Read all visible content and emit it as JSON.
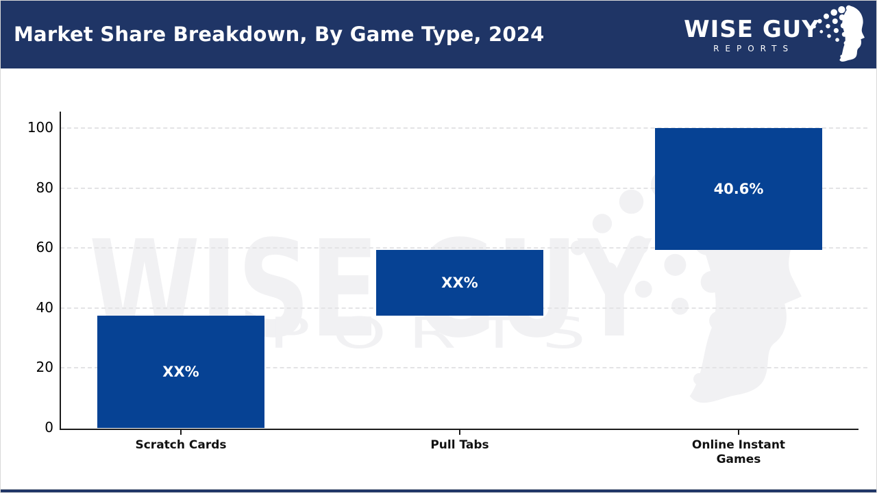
{
  "header": {
    "title": "Market Share Breakdown, By Game Type, 2024",
    "logo": {
      "line1": "WISE GUY",
      "line2": "REPORTS"
    }
  },
  "watermark": {
    "line1": "WISE GUY",
    "line2": "R E P O R T S"
  },
  "chart_data": {
    "type": "bar",
    "subtype": "waterfall-floating-bars",
    "title": "Market Share Breakdown, By Game Type, 2024",
    "categories": [
      "Scratch Cards",
      "Pull Tabs",
      "Online Instant Games"
    ],
    "segments": [
      {
        "category": "Scratch Cards",
        "start": 0,
        "end": 37.5,
        "label": "XX%"
      },
      {
        "category": "Pull Tabs",
        "start": 37.5,
        "end": 59.4,
        "label": "XX%"
      },
      {
        "category": "Online Instant Games",
        "start": 59.4,
        "end": 100,
        "label": "40.6%"
      }
    ],
    "y_ticks": [
      0,
      20,
      40,
      60,
      80,
      100
    ],
    "ylim": [
      0,
      106
    ],
    "xlabel": "",
    "ylabel": "",
    "grid": "horizontal-dashed",
    "legend": "none",
    "bar_color": "#064294",
    "bar_label_color": "#ffffff"
  },
  "colors": {
    "header_bg": "#1f3566",
    "footer_bg": "#1f3566",
    "grid": "#e3e3e5",
    "watermark": "#f1f1f3",
    "axis": "#1a1a1a"
  }
}
